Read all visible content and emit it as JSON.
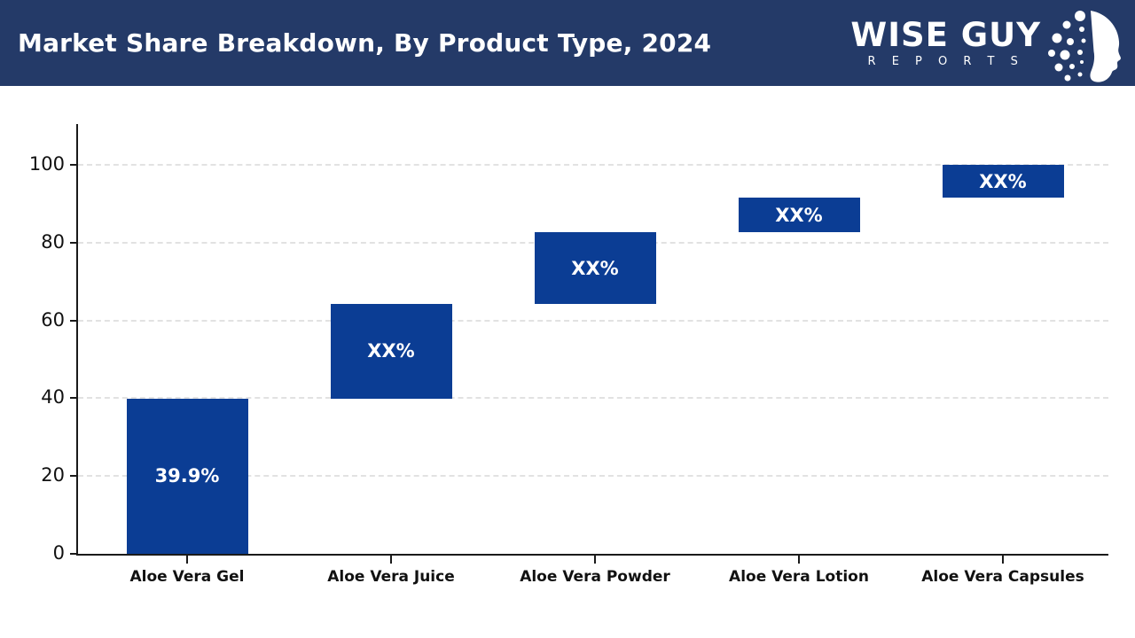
{
  "header": {
    "title": "Market Share Breakdown, By Product Type, 2024",
    "logo": {
      "line1": "WISE GUY",
      "line2": "R E P O R T S"
    }
  },
  "watermark": {
    "line1": "WISE GUY",
    "line2": "R E P O R T S"
  },
  "chart_data": {
    "type": "bar",
    "subtype": "waterfall",
    "title": "Market Share Breakdown, By Product Type, 2024",
    "categories": [
      "Aloe Vera Gel",
      "Aloe Vera Juice",
      "Aloe Vera Powder",
      "Aloe Vera Lotion",
      "Aloe Vera Capsules"
    ],
    "bars": [
      {
        "category": "Aloe Vera Gel",
        "start": 0,
        "end": 39.9,
        "label": "39.9%"
      },
      {
        "category": "Aloe Vera Juice",
        "start": 39.9,
        "end": 64.2,
        "label": "XX%"
      },
      {
        "category": "Aloe Vera Powder",
        "start": 64.2,
        "end": 82.7,
        "label": "XX%"
      },
      {
        "category": "Aloe Vera Lotion",
        "start": 82.7,
        "end": 91.5,
        "label": "XX%"
      },
      {
        "category": "Aloe Vera Capsules",
        "start": 91.5,
        "end": 100,
        "label": "XX%"
      }
    ],
    "ylabel": "",
    "xlabel": "",
    "yticks": [
      0,
      20,
      40,
      60,
      80,
      100
    ],
    "ylim": [
      0,
      105
    ],
    "grid": "horizontal-dashed",
    "legend": "none",
    "colors": {
      "bar": "#0b3d94",
      "bar_label": "#ffffff",
      "axis": "#1a1a1a",
      "gridline": "#e2e2e2",
      "header_bg": "#243a68",
      "header_text": "#ffffff"
    }
  }
}
